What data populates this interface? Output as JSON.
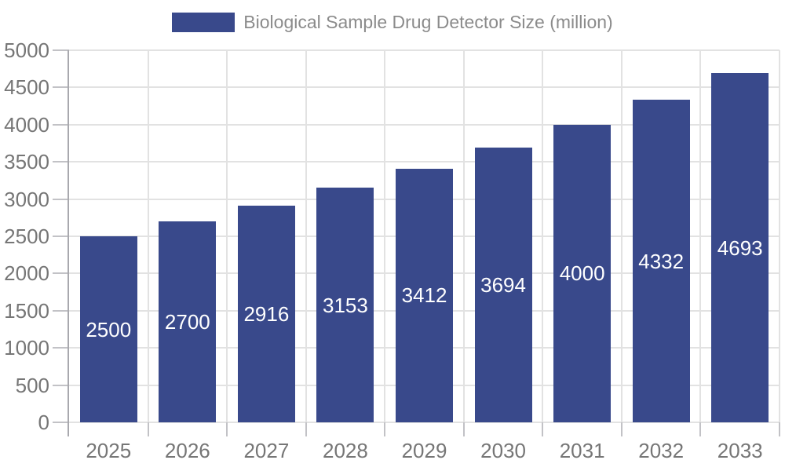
{
  "legend": {
    "label": "Biological Sample Drug Detector Size (million)"
  },
  "chart_data": {
    "type": "bar",
    "title": "Biological Sample Drug Detector Size (million)",
    "categories": [
      "2025",
      "2026",
      "2027",
      "2028",
      "2029",
      "2030",
      "2031",
      "2032",
      "2033"
    ],
    "series": [
      {
        "name": "Biological Sample Drug Detector Size (million)",
        "values": [
          2500,
          2700,
          2916,
          3153,
          3412,
          3694,
          4000,
          4332,
          4693
        ]
      }
    ],
    "data_labels": [
      "2500",
      "2700",
      "2916",
      "3153",
      "3412",
      "3694",
      "4000",
      "4332",
      "4693"
    ],
    "xlabel": "",
    "ylabel": "",
    "ylim": [
      0,
      5000
    ],
    "y_ticks": [
      0,
      500,
      1000,
      1500,
      2000,
      2500,
      3000,
      3500,
      4000,
      4500,
      5000
    ],
    "grid": true,
    "legend_position": "top-center",
    "colors": {
      "bar": "#39498B",
      "bar_label": "#FFFFFF",
      "legend_text": "#8B8B8B",
      "axis_text": "#767676",
      "grid": "#E2E2E2",
      "axis_line": "#A9A9AE",
      "tick": "#C2C2C6"
    }
  }
}
